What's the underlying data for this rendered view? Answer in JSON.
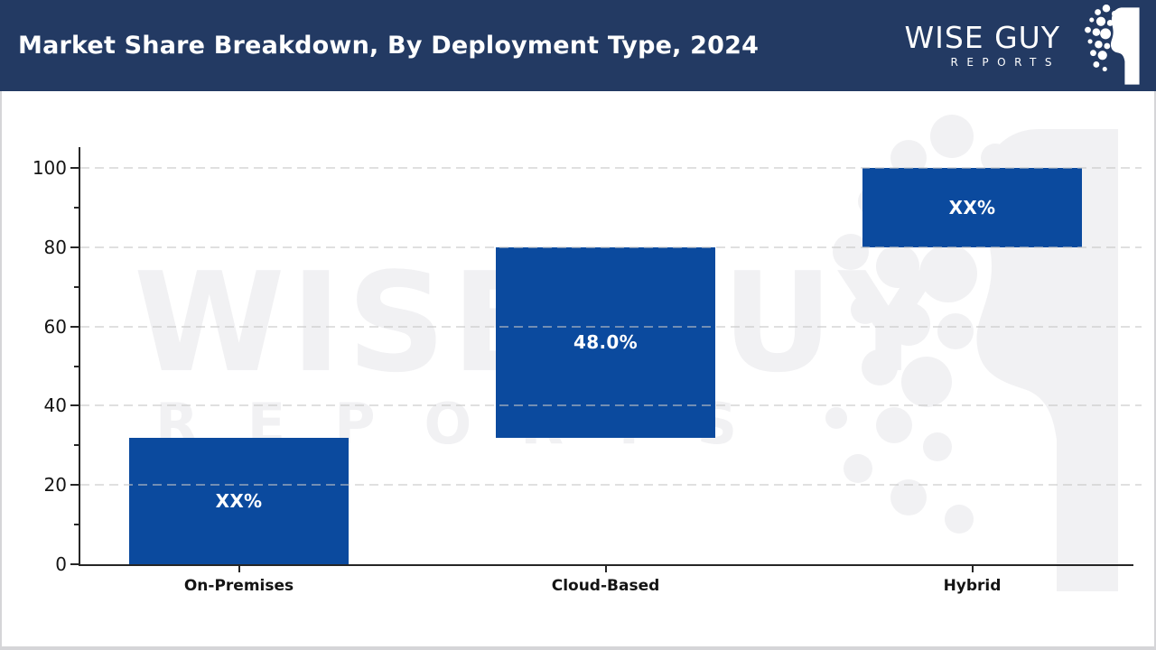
{
  "header": {
    "title": "Market Share Breakdown, By Deployment Type, 2024",
    "logo": {
      "line1": "WISE GUY",
      "line2": "REPORTS"
    }
  },
  "watermark": {
    "line1": "WISE GUY",
    "line2": "REPORTS"
  },
  "colors": {
    "header_background": "#233a63",
    "bar_fill": "#0b4a9e",
    "axis": "#262626",
    "gridline": "#c6c6c6",
    "bar_label_text": "#ffffff",
    "watermark": "#f1f1f3"
  },
  "chart_data": {
    "type": "bar",
    "subtype": "floating-waterfall",
    "title": "Market Share Breakdown, By Deployment Type, 2024",
    "categories": [
      "On-Premises",
      "Cloud-Based",
      "Hybrid"
    ],
    "series": [
      {
        "name": "Market Share (%)",
        "bases": [
          0,
          32,
          80
        ],
        "values": [
          32,
          48,
          20
        ]
      }
    ],
    "bar_labels": [
      "XX%",
      "48.0%",
      "XX%"
    ],
    "xlabel": "",
    "ylabel": "",
    "ylim": [
      0,
      100
    ],
    "yticks": [
      0,
      20,
      40,
      60,
      80,
      100
    ],
    "minor_ytick_step": 10,
    "grid": "horizontal-dashed",
    "legend": "none",
    "bar_color": "#0b4a9e"
  }
}
